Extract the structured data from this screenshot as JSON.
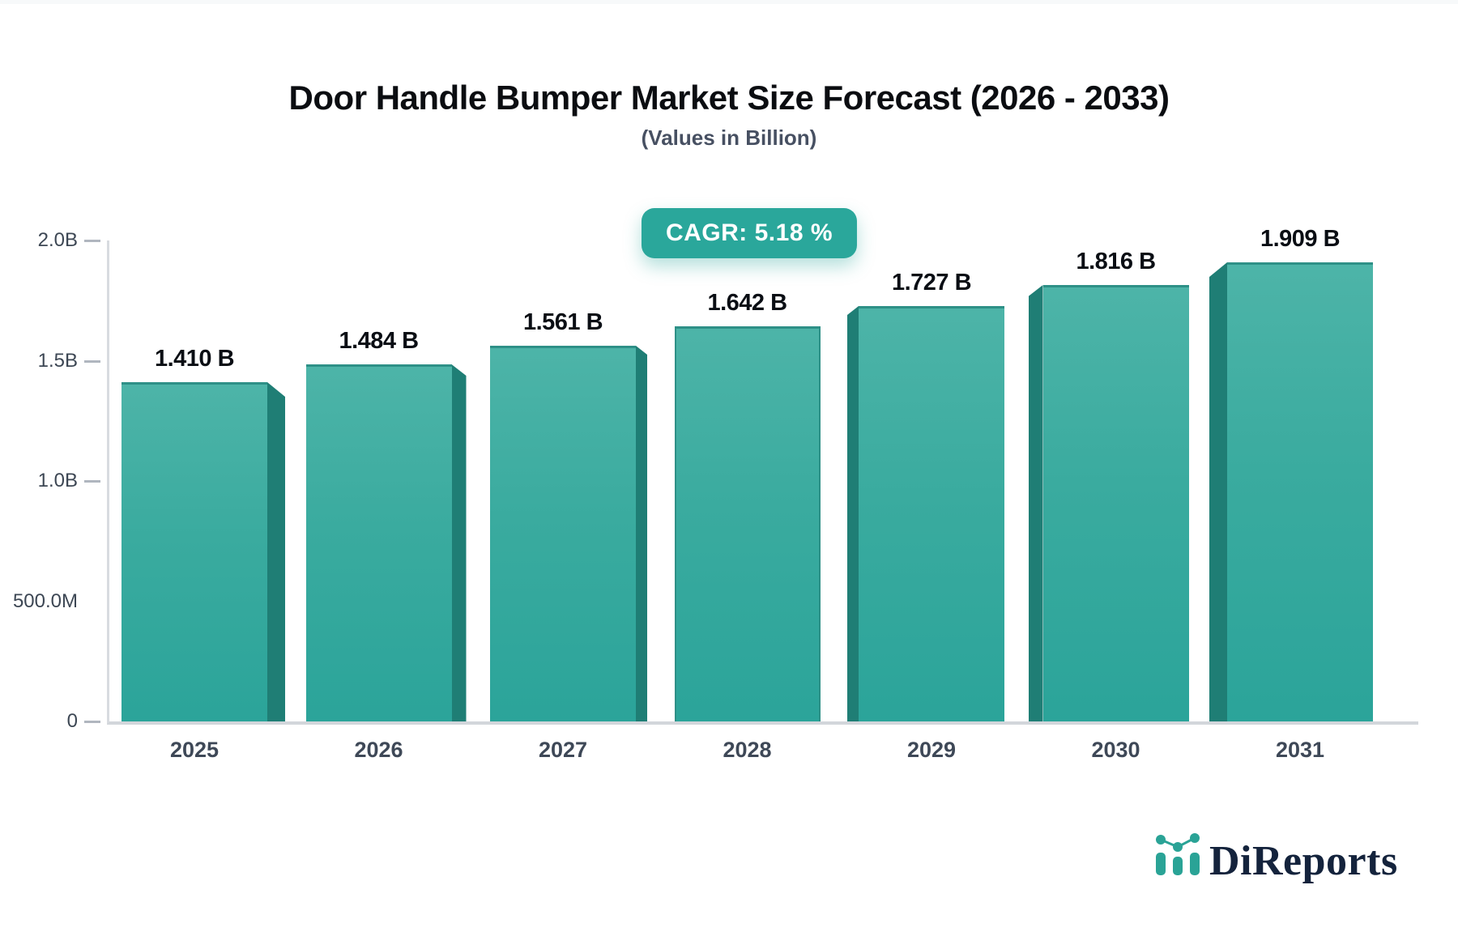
{
  "header": {
    "title": "Door Handle Bumper Market Size Forecast (2026 - 2033)",
    "subtitle": "(Values in Billion)"
  },
  "badge": {
    "label": "CAGR: 5.18 %"
  },
  "chart_data": {
    "type": "bar",
    "title": "Door Handle Bumper Market Size Forecast (2026 - 2033)",
    "subtitle": "(Values in Billion)",
    "cagr": "CAGR: 5.18 %",
    "categories": [
      "2025",
      "2026",
      "2027",
      "2028",
      "2029",
      "2030",
      "2031"
    ],
    "values": [
      1.41,
      1.484,
      1.561,
      1.642,
      1.727,
      1.816,
      1.909
    ],
    "value_labels": [
      "1.410 B",
      "1.484 B",
      "1.561 B",
      "1.642 B",
      "1.727 B",
      "1.816 B",
      "1.909 B"
    ],
    "y_ticks": [
      {
        "label": "2.0B",
        "value": 2.0,
        "tick": true
      },
      {
        "label": "1.5B",
        "value": 1.5,
        "tick": true
      },
      {
        "label": "1.0B",
        "value": 1.0,
        "tick": true
      },
      {
        "label": "500.0M",
        "value": 0.5,
        "tick": false
      },
      {
        "label": "0",
        "value": 0.0,
        "tick": true
      }
    ],
    "ylim": [
      0,
      2.0
    ],
    "xlabel": "",
    "ylabel": "",
    "grid": false,
    "legend": false,
    "colors": {
      "bar_face_top": "#4db4a8",
      "bar_face_bottom": "#2ba49a",
      "bar_bevel": "#1f7e75",
      "bar_edge": "#2e9087",
      "badge_background": "#2aa79b",
      "axis_line": "#d8dbe0",
      "label_text": "#3d4754",
      "value_text": "#0a0e14"
    }
  },
  "logo": {
    "text": "DiReports",
    "icon": "bar-chart-logo-icon",
    "text_color": "#14233c",
    "icon_color": "#2aa396"
  }
}
